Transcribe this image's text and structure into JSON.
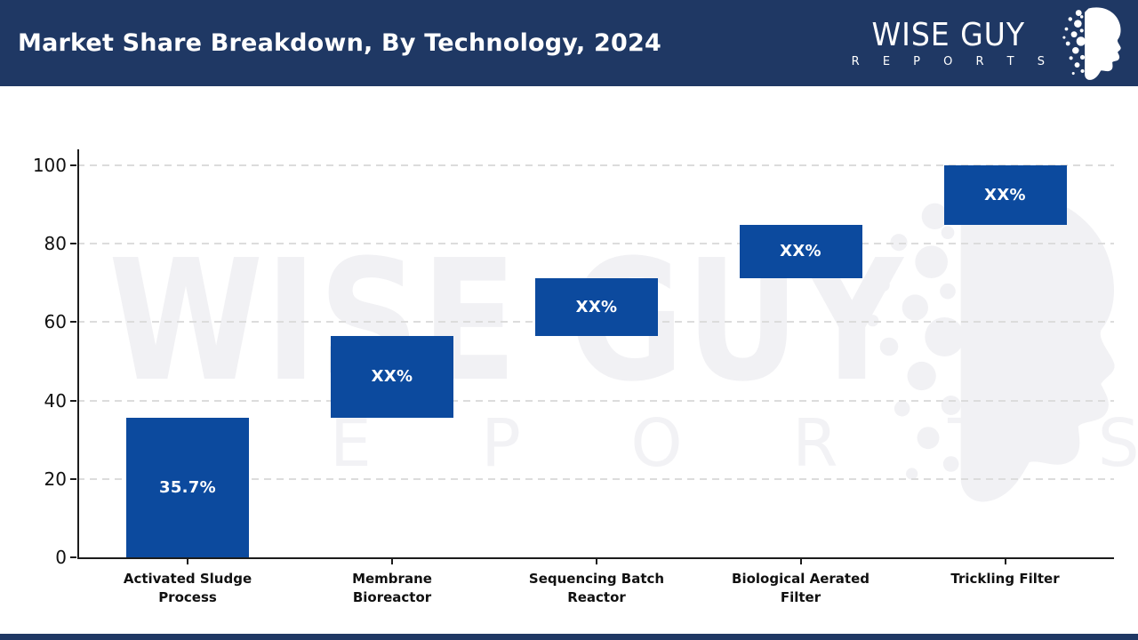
{
  "header": {
    "title": "Market Share Breakdown, By Technology, 2024",
    "logo": {
      "line1": "WISE GUY",
      "line2": "REPORTS"
    },
    "background_color": "#1f3864"
  },
  "footer": {
    "background_color": "#1f3864"
  },
  "watermark": {
    "line1": "WISE GUY",
    "line2": "REPORTS",
    "head_icon": "dotted-head-profile"
  },
  "chart_data": {
    "type": "bar",
    "subtype": "waterfall",
    "title": "Market Share Breakdown, By Technology, 2024",
    "categories": [
      "Activated Sludge Process",
      "Membrane Bioreactor",
      "Sequencing Batch Reactor",
      "Biological Aerated Filter",
      "Trickling Filter"
    ],
    "category_lines": [
      [
        "Activated Sludge",
        "Process"
      ],
      [
        "Membrane",
        "Bioreactor"
      ],
      [
        "Sequencing Batch",
        "Reactor"
      ],
      [
        "Biological Aerated",
        "Filter"
      ],
      [
        "Trickling Filter"
      ]
    ],
    "segments": [
      {
        "category": "Activated Sludge Process",
        "start": 0,
        "end": 35.7,
        "label": "35.7%"
      },
      {
        "category": "Membrane Bioreactor",
        "start": 35.7,
        "end": 56.5,
        "label": "XX%"
      },
      {
        "category": "Sequencing Batch Reactor",
        "start": 56.5,
        "end": 71.3,
        "label": "XX%"
      },
      {
        "category": "Biological Aerated Filter",
        "start": 71.3,
        "end": 84.8,
        "label": "XX%"
      },
      {
        "category": "Trickling Filter",
        "start": 84.8,
        "end": 100,
        "label": "XX%"
      }
    ],
    "yticks": [
      0,
      20,
      40,
      60,
      80,
      100
    ],
    "ylim": [
      0,
      105
    ],
    "xlabel": "",
    "ylabel": "",
    "grid": "horizontal dashed",
    "legend": "none",
    "bar_color": "#0c4a9e",
    "bar_label_color": "#ffffff",
    "axis_color": "#1c1c1c",
    "gridline_color": "#dcdcdc"
  }
}
